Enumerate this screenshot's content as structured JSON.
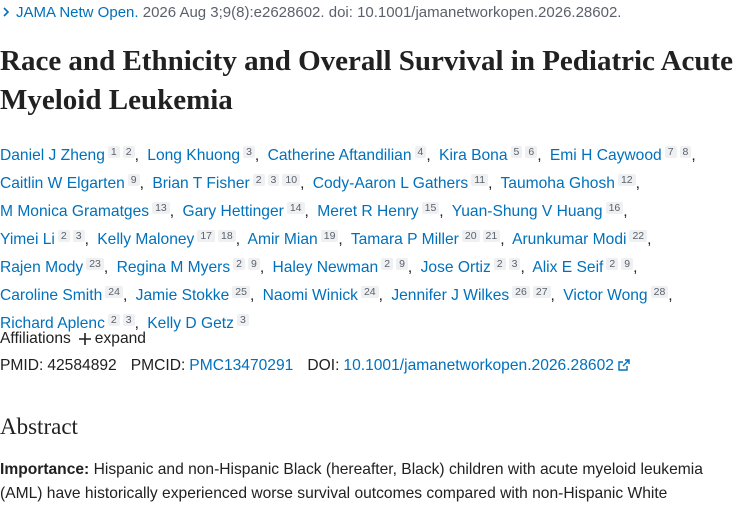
{
  "citation": {
    "journal": "JAMA Netw Open.",
    "details": "2026 Aug 3;9(8):e2628602. doi: 10.1001/jamanetworkopen.2026.28602."
  },
  "title": "Race and Ethnicity and Overall Survival in Pediatric Acute Myeloid Leukemia",
  "authors": [
    {
      "name": "Daniel J Zheng",
      "affiliations": [
        "1",
        "2"
      ]
    },
    {
      "name": "Long Khuong",
      "affiliations": [
        "3"
      ]
    },
    {
      "name": "Catherine Aftandilian",
      "affiliations": [
        "4"
      ]
    },
    {
      "name": "Kira Bona",
      "affiliations": [
        "5",
        "6"
      ]
    },
    {
      "name": "Emi H Caywood",
      "affiliations": [
        "7",
        "8"
      ]
    },
    {
      "name": "Caitlin W Elgarten",
      "affiliations": [
        "9"
      ]
    },
    {
      "name": "Brian T Fisher",
      "affiliations": [
        "2",
        "3",
        "10"
      ]
    },
    {
      "name": "Cody-Aaron L Gathers",
      "affiliations": [
        "11"
      ]
    },
    {
      "name": "Taumoha Ghosh",
      "affiliations": [
        "12"
      ]
    },
    {
      "name": "M Monica Gramatges",
      "affiliations": [
        "13"
      ]
    },
    {
      "name": "Gary Hettinger",
      "affiliations": [
        "14"
      ]
    },
    {
      "name": "Meret R Henry",
      "affiliations": [
        "15"
      ]
    },
    {
      "name": "Yuan-Shung V Huang",
      "affiliations": [
        "16"
      ]
    },
    {
      "name": "Yimei Li",
      "affiliations": [
        "2",
        "3"
      ]
    },
    {
      "name": "Kelly Maloney",
      "affiliations": [
        "17",
        "18"
      ]
    },
    {
      "name": "Amir Mian",
      "affiliations": [
        "19"
      ]
    },
    {
      "name": "Tamara P Miller",
      "affiliations": [
        "20",
        "21"
      ]
    },
    {
      "name": "Arunkumar Modi",
      "affiliations": [
        "22"
      ]
    },
    {
      "name": "Rajen Mody",
      "affiliations": [
        "23"
      ]
    },
    {
      "name": "Regina M Myers",
      "affiliations": [
        "2",
        "9"
      ]
    },
    {
      "name": "Haley Newman",
      "affiliations": [
        "2",
        "9"
      ]
    },
    {
      "name": "Jose Ortiz",
      "affiliations": [
        "2",
        "3"
      ]
    },
    {
      "name": "Alix E Seif",
      "affiliations": [
        "2",
        "9"
      ]
    },
    {
      "name": "Caroline Smith",
      "affiliations": [
        "24"
      ]
    },
    {
      "name": "Jamie Stokke",
      "affiliations": [
        "25"
      ]
    },
    {
      "name": "Naomi Winick",
      "affiliations": [
        "24"
      ]
    },
    {
      "name": "Jennifer J Wilkes",
      "affiliations": [
        "26",
        "27"
      ]
    },
    {
      "name": "Victor Wong",
      "affiliations": [
        "28"
      ]
    },
    {
      "name": "Richard Aplenc",
      "affiliations": [
        "2",
        "3"
      ]
    },
    {
      "name": "Kelly D Getz",
      "affiliations": [
        "3"
      ]
    }
  ],
  "affiliations_toggle": {
    "label": "Affiliations",
    "action": "expand"
  },
  "identifiers": {
    "pmid_label": "PMID:",
    "pmid": "42584892",
    "pmcid_label": "PMCID:",
    "pmcid": "PMC13470291",
    "doi_label": "DOI:",
    "doi": "10.1001/jamanetworkopen.2026.28602"
  },
  "abstract": {
    "heading": "Abstract",
    "importance_label": "Importance:",
    "importance_text": "Hispanic and non-Hispanic Black (hereafter, Black) children with acute myeloid leukemia (AML) have historically experienced worse survival outcomes compared with non-Hispanic White"
  }
}
